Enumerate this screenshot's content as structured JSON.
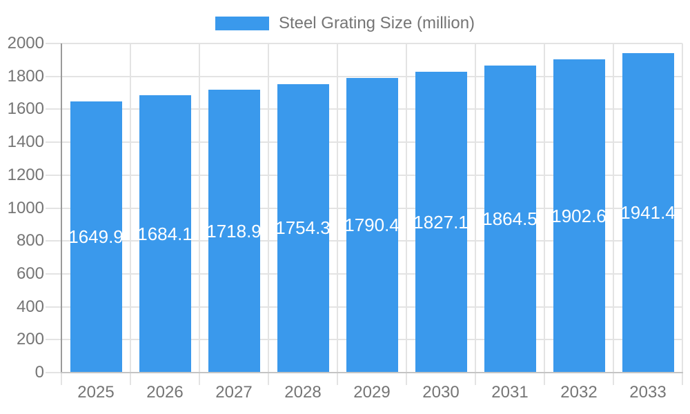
{
  "chart_data": {
    "type": "bar",
    "legend_label": "Steel Grating Size (million)",
    "legend_position": "top",
    "categories": [
      "2025",
      "2026",
      "2027",
      "2028",
      "2029",
      "2030",
      "2031",
      "2032",
      "2033"
    ],
    "series": [
      {
        "name": "Steel Grating Size (million)",
        "values": [
          1649.9,
          1684.1,
          1718.9,
          1754.3,
          1790.4,
          1827.1,
          1864.5,
          1902.6,
          1941.4
        ]
      }
    ],
    "value_labels_visible": true,
    "value_label_decimals": 1,
    "xlabel": "",
    "ylabel": "",
    "ylim": [
      0,
      2000
    ],
    "ytick_step": 200,
    "grid": true,
    "colors": {
      "bar": "#3A99EC",
      "grid": "#E3E3E3",
      "y_axis_line": "#9A9A9A",
      "x_axis_line": "#C4C4C4",
      "tick": "#E3E3E3",
      "axis_text": "#757575",
      "value_label_text": "#FFFFFF",
      "background": "#FFFFFF"
    }
  }
}
